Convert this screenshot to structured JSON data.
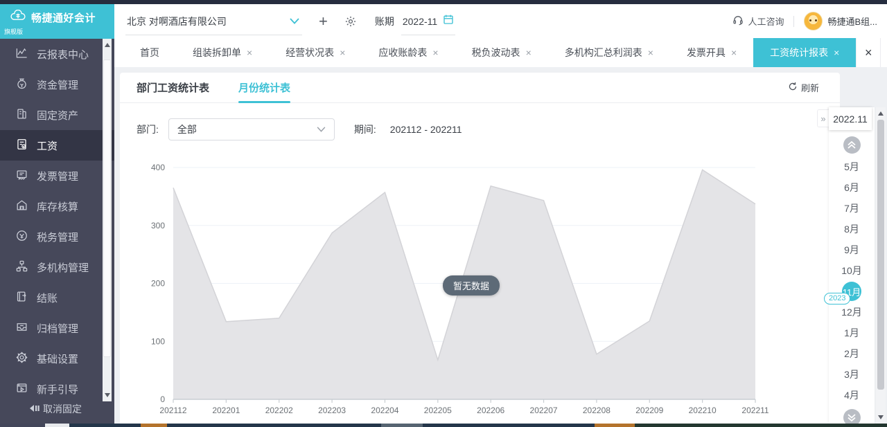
{
  "colors": {
    "accent": "#3ec1d5",
    "sidebar_bg": "#46485a",
    "tooltip_bg": "#5d6a77",
    "chart_fill": "#e4e4e7",
    "chart_stroke": "#d3d3d7"
  },
  "logo": {
    "title": "畅捷通好会计",
    "edition": "旗舰版"
  },
  "sidebar": {
    "items": [
      {
        "icon": "cloud-report-icon",
        "label": "云报表中心",
        "active": false
      },
      {
        "icon": "funds-icon",
        "label": "资金管理",
        "active": false
      },
      {
        "icon": "fixed-assets-icon",
        "label": "固定资产",
        "active": false
      },
      {
        "icon": "salary-icon",
        "label": "工资",
        "active": true
      },
      {
        "icon": "invoice-icon",
        "label": "发票管理",
        "active": false
      },
      {
        "icon": "inventory-icon",
        "label": "库存核算",
        "active": false
      },
      {
        "icon": "tax-icon",
        "label": "税务管理",
        "active": false
      },
      {
        "icon": "multi-org-icon",
        "label": "多机构管理",
        "active": false
      },
      {
        "icon": "closing-icon",
        "label": "结账",
        "active": false
      },
      {
        "icon": "archive-icon",
        "label": "归档管理",
        "active": false
      },
      {
        "icon": "settings-icon",
        "label": "基础设置",
        "active": false
      },
      {
        "icon": "guide-icon",
        "label": "新手引导",
        "active": false
      }
    ],
    "unpin_label": "取消固定"
  },
  "topbar": {
    "company": "北京 对啊酒店有限公司",
    "period_label": "账期",
    "period_value": "2022-11",
    "support_label": "人工咨询",
    "user_name": "畅捷通B组..."
  },
  "tabs": {
    "items": [
      {
        "label": "首页",
        "closable": false,
        "active": false
      },
      {
        "label": "组装拆卸单",
        "closable": true,
        "active": false
      },
      {
        "label": "经营状况表",
        "closable": true,
        "active": false
      },
      {
        "label": "应收账龄表",
        "closable": true,
        "active": false
      },
      {
        "label": "税负波动表",
        "closable": true,
        "active": false
      },
      {
        "label": "多机构汇总利润表",
        "closable": true,
        "active": false
      },
      {
        "label": "发票开具",
        "closable": true,
        "active": false
      },
      {
        "label": "工资统计报表",
        "closable": true,
        "active": true
      }
    ]
  },
  "subtabs": {
    "items": [
      {
        "label": "部门工资统计表",
        "active": false
      },
      {
        "label": "月份统计表",
        "active": true
      }
    ],
    "refresh_label": "刷新"
  },
  "filters": {
    "department_label": "部门:",
    "department_value": "全部",
    "period_label": "期间:",
    "period_value": "202112 - 202211"
  },
  "chart_data": {
    "type": "area",
    "title": "",
    "x": [
      "202112",
      "202201",
      "202202",
      "202203",
      "202204",
      "202205",
      "202206",
      "202207",
      "202208",
      "202209",
      "202210",
      "202211"
    ],
    "values": [
      365,
      134,
      140,
      287,
      357,
      68,
      368,
      343,
      78,
      135,
      396,
      337
    ],
    "ylim": [
      0,
      400
    ],
    "yticks": [
      0,
      100,
      200,
      300,
      400
    ],
    "grid": true,
    "legend": "none",
    "tooltip": "暂无数据"
  },
  "month_panel": {
    "current": "2022.11",
    "year_badge": "2023",
    "months": [
      {
        "label": "5月",
        "active": false
      },
      {
        "label": "6月",
        "active": false
      },
      {
        "label": "7月",
        "active": false
      },
      {
        "label": "8月",
        "active": false
      },
      {
        "label": "9月",
        "active": false
      },
      {
        "label": "10月",
        "active": false
      },
      {
        "label": "11月",
        "active": true
      },
      {
        "label": "12月",
        "active": false
      },
      {
        "label": "1月",
        "active": false
      },
      {
        "label": "2月",
        "active": false
      },
      {
        "label": "3月",
        "active": false
      },
      {
        "label": "4月",
        "active": false
      }
    ]
  }
}
